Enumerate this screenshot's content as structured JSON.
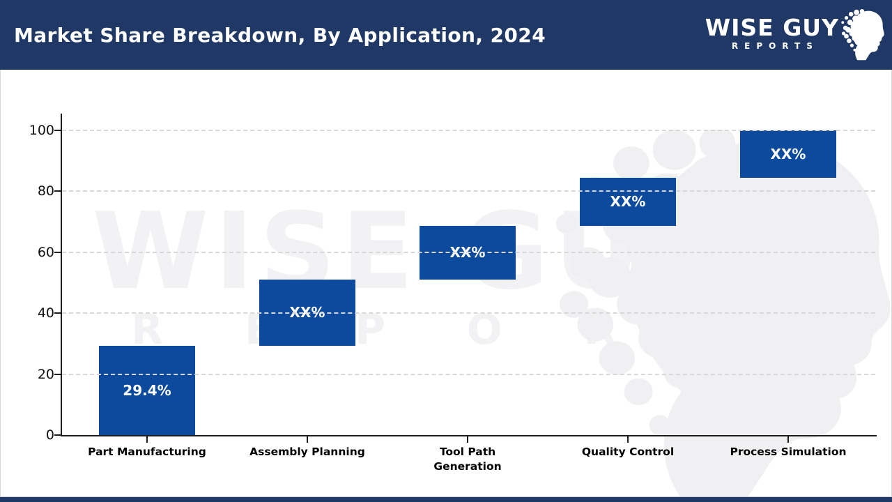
{
  "header": {
    "title": "Market Share Breakdown, By Application, 2024",
    "logo": {
      "line1": "WISE GUY",
      "line2": "REPORTS"
    }
  },
  "watermark": {
    "line1": "WISE GUY",
    "line2": "R E P O R T S"
  },
  "chart_data": {
    "type": "bar",
    "subtype": "waterfall",
    "title": "Market Share Breakdown, By Application, 2024",
    "categories": [
      "Part Manufacturing",
      "Assembly Planning",
      "Tool Path Generation",
      "Quality Control",
      "Process Simulation"
    ],
    "categories_lines": [
      [
        "Part Manufacturing"
      ],
      [
        "Assembly Planning"
      ],
      [
        "Tool Path",
        "Generation"
      ],
      [
        "Quality Control"
      ],
      [
        "Process Simulation"
      ]
    ],
    "segments": [
      {
        "start": 0,
        "end": 29.4,
        "label": "29.4%"
      },
      {
        "start": 29.4,
        "end": 51.1,
        "label": "XX%"
      },
      {
        "start": 51.1,
        "end": 68.7,
        "label": "XX%"
      },
      {
        "start": 68.7,
        "end": 84.4,
        "label": "XX%"
      },
      {
        "start": 84.4,
        "end": 100,
        "label": "XX%"
      }
    ],
    "ylim": [
      0,
      100
    ],
    "yticks": [
      0,
      20,
      40,
      60,
      80,
      100
    ],
    "xlabel": "",
    "ylabel": "",
    "legend": "none",
    "grid": "horizontal-dashed",
    "bar_color": "#0C4A9E"
  },
  "colors": {
    "header_bg": "#1F3866",
    "footer_bg": "#1F3866",
    "bar": "#0C4A9E",
    "axis": "#1c1c1c",
    "gridline": "#d7d7d7",
    "watermark": "#f2f2f5",
    "title_text": "#ffffff",
    "tick_text": "#111111"
  }
}
